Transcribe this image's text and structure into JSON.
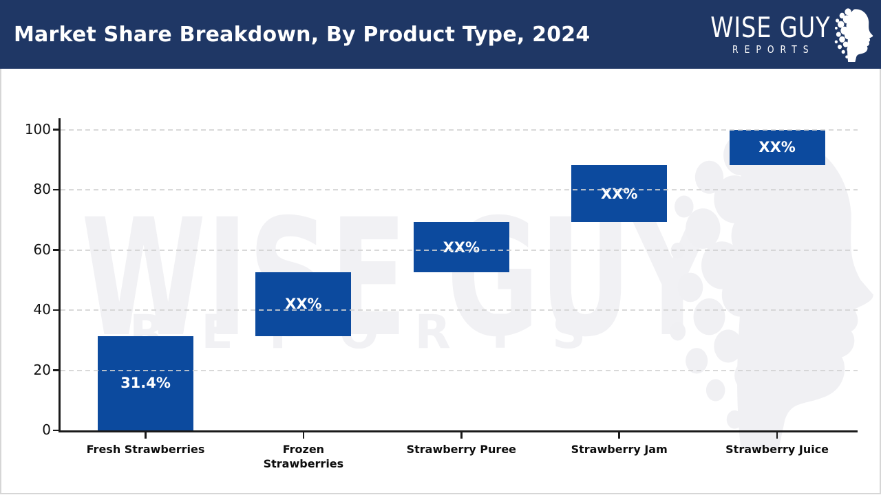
{
  "header": {
    "title": "Market Share Breakdown, By Product Type, 2024",
    "logo": {
      "name": "WISE GUY",
      "sub": "REPORTS"
    }
  },
  "watermark": {
    "line1": "WISE GUY",
    "line2": "REPORTS"
  },
  "colors": {
    "header_bg": "#1f3765",
    "bar": "#0c4a9e",
    "axis": "#1a1a1a",
    "grid_dash": "#d2d2d2",
    "value_label": "#ffffff"
  },
  "chart_data": {
    "type": "bar",
    "subtype": "waterfall",
    "title": "Market Share Breakdown, By Product Type, 2024",
    "unit": "%",
    "ylim": [
      0,
      100
    ],
    "yticks": [
      0,
      20,
      40,
      60,
      80,
      100
    ],
    "grid": "horizontal-dashed",
    "legend": "none",
    "bar_color": "#0c4a9e",
    "categories": [
      "Fresh Strawberries",
      "Frozen\nStrawberries",
      "Strawberry Puree",
      "Strawberry Jam",
      "Strawberry Juice"
    ],
    "segments": [
      {
        "category": "Fresh Strawberries",
        "base": 0,
        "end": 31.4,
        "label": "31.4%"
      },
      {
        "category": "Frozen Strawberries",
        "base": 31.4,
        "end": 52.6,
        "label": "XX%"
      },
      {
        "category": "Strawberry Puree",
        "base": 52.6,
        "end": 69.2,
        "label": "XX%"
      },
      {
        "category": "Strawberry Jam",
        "base": 69.2,
        "end": 88.2,
        "label": "XX%"
      },
      {
        "category": "Strawberry Juice",
        "base": 88.2,
        "end": 100,
        "label": "XX%"
      }
    ]
  }
}
